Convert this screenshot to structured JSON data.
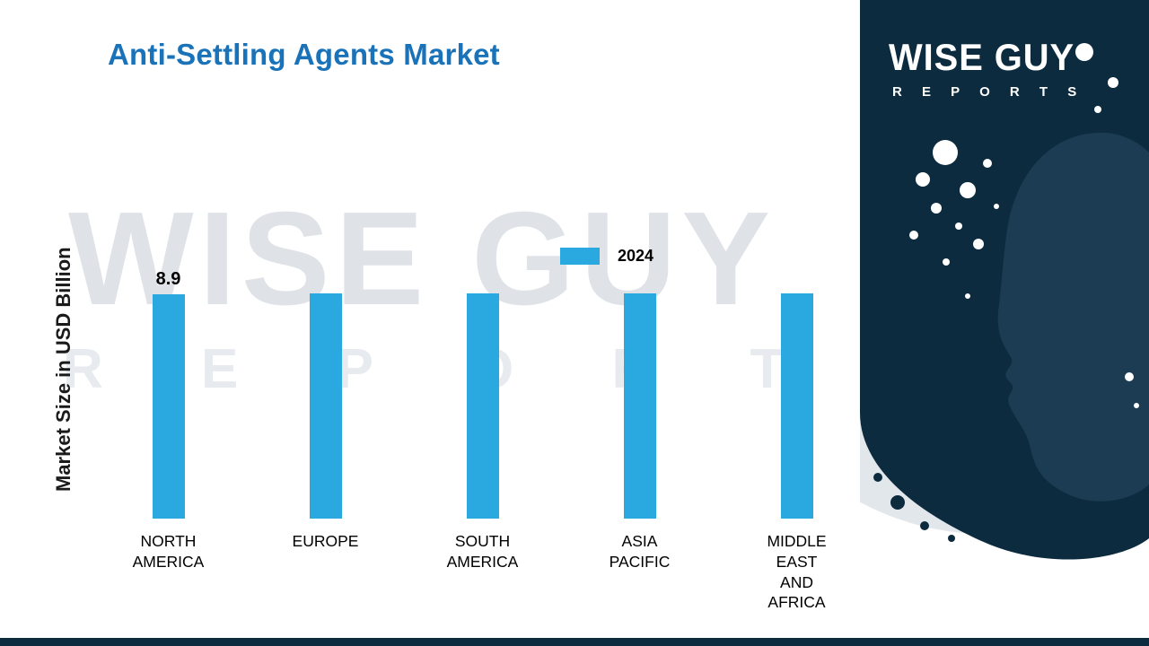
{
  "title": "Anti-Settling Agents Market",
  "ylabel": "Market Size in USD Billion",
  "legend": {
    "year": "2024"
  },
  "logo": {
    "line1": "WISE GUY",
    "line2": "R E P O R T S"
  },
  "watermark": {
    "line1": "WISE GUY",
    "line2": "R E P O R T S"
  },
  "colors": {
    "bar": "#29a9e0",
    "title_blue": "#1a72b8",
    "navy": "#0d2b3e"
  },
  "chart_data": {
    "type": "bar",
    "title": "Anti-Settling Agents Market",
    "ylabel": "Market Size in USD Billion",
    "categories": [
      "NORTH AMERICA",
      "EUROPE",
      "SOUTH AMERICA",
      "ASIA PACIFIC",
      "MIDDLE EAST AND AFRICA"
    ],
    "series": [
      {
        "name": "2024",
        "values": [
          8.9,
          8.9,
          8.9,
          8.9,
          8.9
        ]
      }
    ],
    "data_labels": [
      "8.9",
      "",
      "",
      "",
      ""
    ],
    "ylim": [
      0,
      10
    ],
    "grid": false,
    "legend_position": "top-center",
    "bar_color": "#29a9e0"
  }
}
